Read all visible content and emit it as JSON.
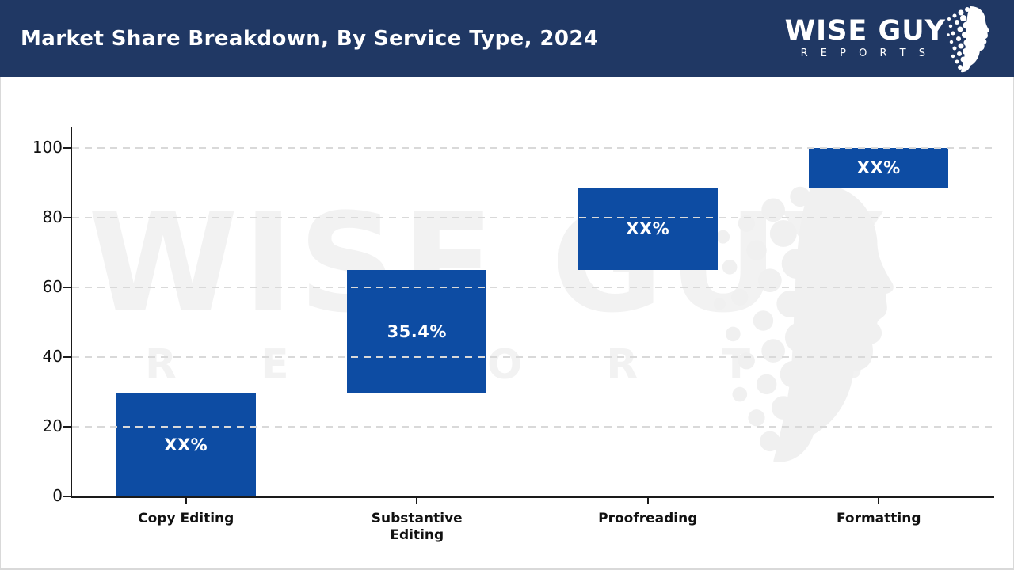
{
  "header": {
    "title": "Market Share Breakdown, By Service Type, 2024",
    "logo": {
      "brand_line1": "WISE GUY",
      "brand_line2": "R E P O R T S"
    }
  },
  "watermark": {
    "line1": "WISE GUY",
    "line2": "R E P O R T S"
  },
  "colors": {
    "header_bg": "#203864",
    "bar_blue": "#0d4ca3",
    "gridline": "#d9d9d9",
    "axis": "#1a1a1a",
    "watermark_gray": "#f2f2f2"
  },
  "chart_data": {
    "type": "bar",
    "subtype": "waterfall",
    "title": "Market Share Breakdown, By Service Type, 2024",
    "categories": [
      "Copy Editing",
      "Substantive Editing",
      "Proofreading",
      "Formatting"
    ],
    "values": [
      29.5,
      35.4,
      23.7,
      11.4
    ],
    "segment_start": [
      0,
      29.5,
      64.9,
      88.6
    ],
    "segment_end": [
      29.5,
      64.9,
      88.6,
      100
    ],
    "bar_labels": [
      "XX%",
      "35.4%",
      "XX%",
      "XX%"
    ],
    "xlabel": "",
    "ylabel": "",
    "ylim": [
      0,
      106
    ],
    "yticks": [
      0,
      20,
      40,
      60,
      80,
      100
    ],
    "grid": "horizontal dashed",
    "legend": "none",
    "bar_color": "#0d4ca3"
  }
}
